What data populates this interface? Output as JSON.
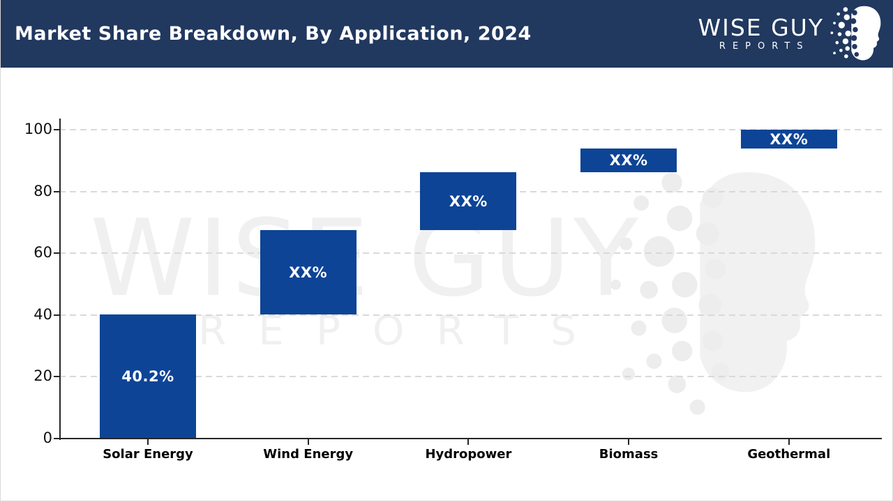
{
  "header": {
    "title": "Market Share Breakdown, By Application, 2024",
    "bg_color": "#21385f",
    "brand": {
      "line1": "WISE GUY",
      "line2": "REPORTS"
    }
  },
  "watermark": {
    "line1": "WISE GUY",
    "line2": "REPORTS"
  },
  "chart_data": {
    "type": "bar",
    "subtype": "waterfall",
    "title": "Market Share Breakdown, By Application, 2024",
    "categories": [
      "Solar Energy",
      "Wind Energy",
      "Hydropower",
      "Biomass",
      "Geothermal"
    ],
    "segments": [
      {
        "category": "Solar Energy",
        "start": 0,
        "end": 40.2,
        "value": 40.2,
        "label": "40.2%"
      },
      {
        "category": "Wind Energy",
        "start": 40.2,
        "end": 67.4,
        "value": 27.2,
        "label": "XX%"
      },
      {
        "category": "Hydropower",
        "start": 67.4,
        "end": 86.2,
        "value": 18.8,
        "label": "XX%"
      },
      {
        "category": "Biomass",
        "start": 86.2,
        "end": 93.8,
        "value": 7.6,
        "label": "XX%"
      },
      {
        "category": "Geothermal",
        "start": 93.8,
        "end": 100,
        "value": 6.2,
        "label": "XX%"
      }
    ],
    "yticks": [
      0,
      20,
      40,
      60,
      80,
      100
    ],
    "ylim": [
      0,
      104
    ],
    "xlabel": "",
    "ylabel": "",
    "grid": "horizontal-dashed",
    "legend": "none",
    "bar_color": "#0d4496",
    "bar_label_color": "#ffffff",
    "grid_color": "#d9d9d9",
    "axis_color": "#262626",
    "background": "#ffffff"
  }
}
